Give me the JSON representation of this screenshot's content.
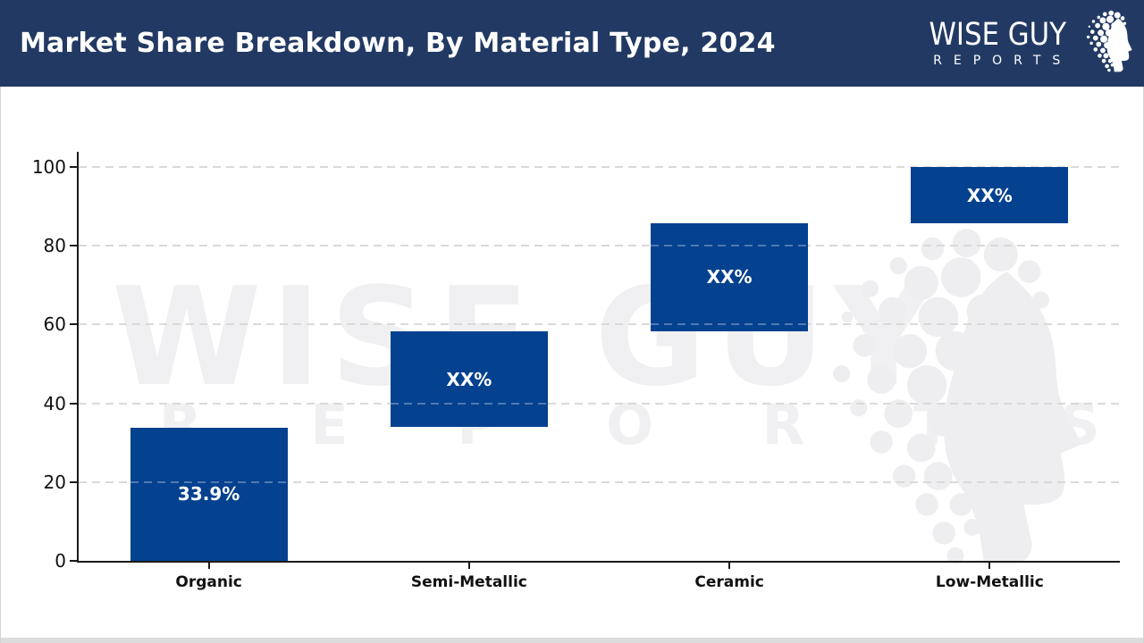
{
  "header": {
    "title": "Market Share Breakdown, By Material Type, 2024",
    "bg_color": "#223A63",
    "logo": {
      "line1": "WISE GUY",
      "line2": "REPORTS"
    }
  },
  "watermark": {
    "line1": "WISE GUY",
    "line2": "R E P O R T S"
  },
  "chart_data": {
    "type": "bar",
    "subtype": "waterfall",
    "title": "Market Share Breakdown, By Material Type, 2024",
    "categories": [
      "Organic",
      "Semi-Metallic",
      "Ceramic",
      "Low-Metallic"
    ],
    "series": [
      {
        "name": "Market Share",
        "ranges": [
          [
            0,
            33.9
          ],
          [
            33.9,
            58.3
          ],
          [
            58.3,
            85.7
          ],
          [
            85.7,
            100
          ]
        ],
        "labels": [
          "33.9%",
          "XX%",
          "XX%",
          "XX%"
        ]
      }
    ],
    "bar_color": "#04418F",
    "bar_label_color": "#ffffff",
    "xlabel": "",
    "ylabel": "",
    "ylim": [
      0,
      100
    ],
    "yticks": [
      0,
      20,
      40,
      60,
      80,
      100
    ],
    "grid": "dashed-horizontal",
    "legend": "none"
  }
}
